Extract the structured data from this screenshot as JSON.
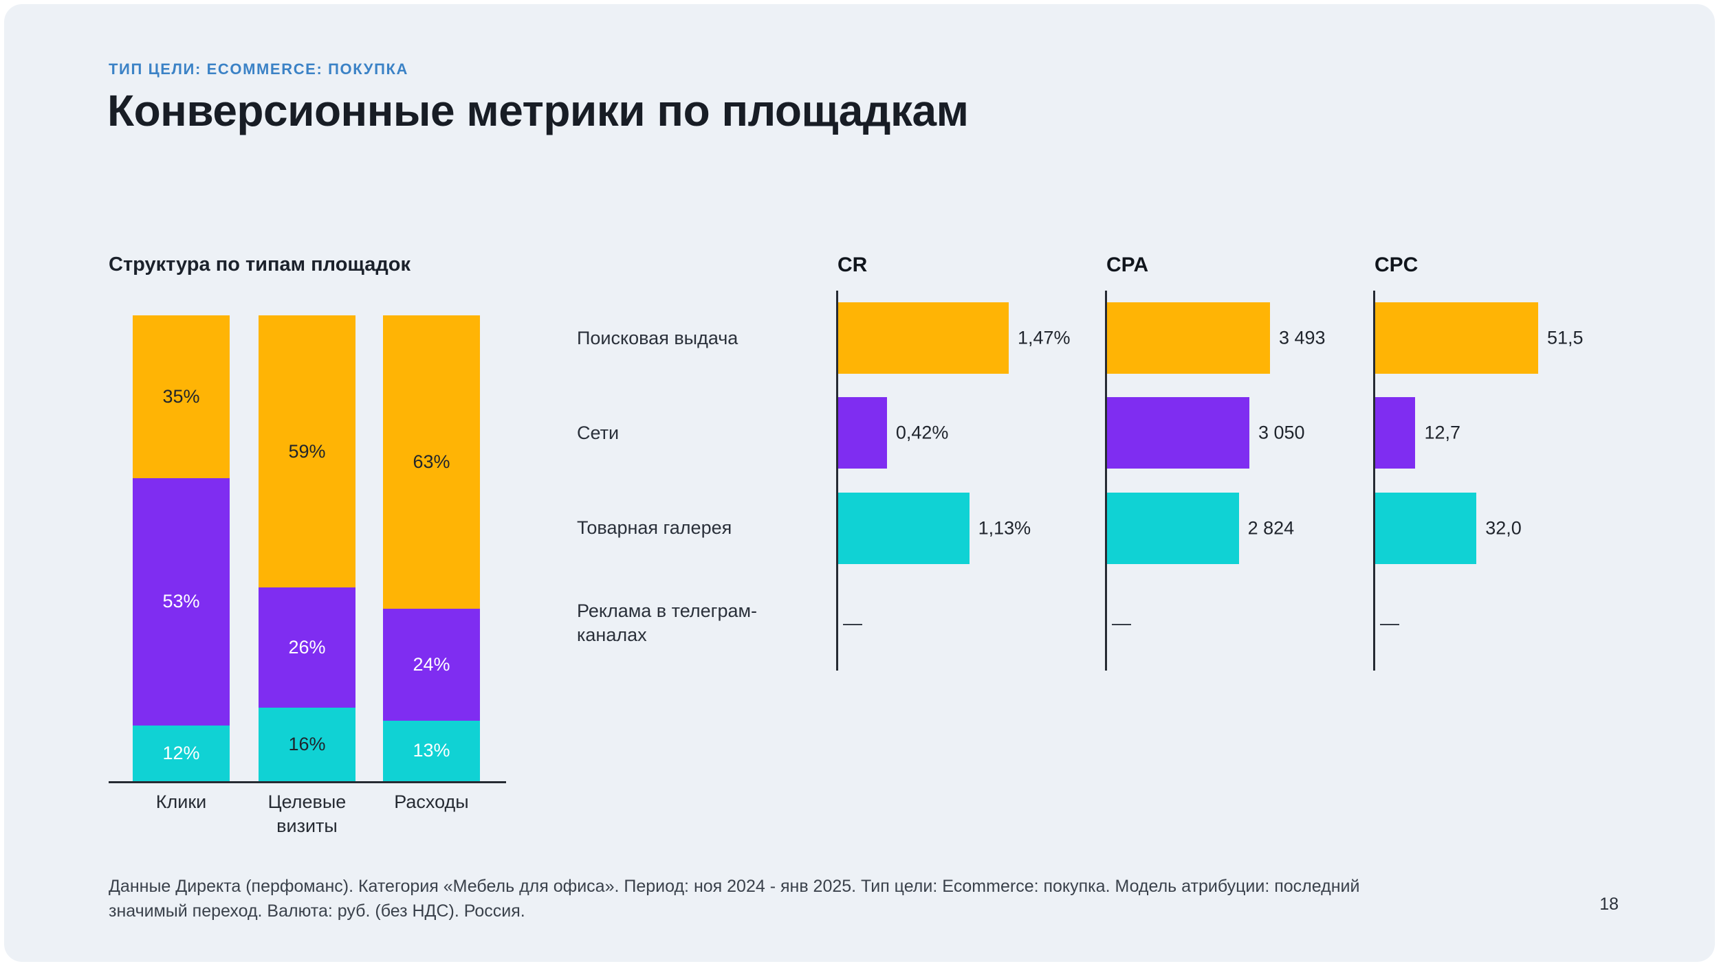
{
  "page": {
    "eyebrow": "ТИП ЦЕЛИ: ECOMMERCE: ПОКУПКА",
    "title": "Конверсионные метрики по площадкам",
    "footnote": "Данные Директа (перфоманс). Категория «Мебель для офиса». Период: ноя 2024 - янв 2025. Тип цели: Ecommerce: покупка. Модель атрибуции: последний значимый переход. Валюта: руб. (без НДС). Россия.",
    "page_number": "18"
  },
  "colors": {
    "background": "#EDF1F6",
    "accent_blue": "#3B82C6",
    "text_dark": "#1B212B",
    "axis": "#262B33",
    "orange": "#FFB405",
    "purple": "#7F2DF1",
    "cyan": "#10D2D4"
  },
  "chart_data": [
    {
      "type": "bar",
      "variant": "stacked-column-percent",
      "title": "Структура по типам площадок",
      "categories": [
        "Клики",
        "Целевые визиты",
        "Расходы"
      ],
      "series": [
        {
          "name": "Товарная галерея",
          "color_key": "cyan",
          "values": [
            12,
            16,
            13
          ],
          "labels": [
            "12%",
            "16%",
            "13%"
          ],
          "label_colors": [
            "#FFFFFF",
            "#1F242C",
            "#FFFFFF"
          ]
        },
        {
          "name": "Сети",
          "color_key": "purple",
          "values": [
            53,
            26,
            24
          ],
          "labels": [
            "53%",
            "26%",
            "24%"
          ],
          "label_colors": [
            "#FFFFFF",
            "#FFFFFF",
            "#FFFFFF"
          ]
        },
        {
          "name": "Поисковая выдача",
          "color_key": "orange",
          "values": [
            35,
            59,
            63
          ],
          "labels": [
            "35%",
            "59%",
            "63%"
          ],
          "label_colors": [
            "#1F242C",
            "#1F242C",
            "#1F242C"
          ]
        }
      ],
      "ylim": [
        0,
        100
      ],
      "grid": false,
      "legend": "none"
    },
    {
      "type": "bar",
      "variant": "horizontal",
      "title": "CR",
      "categories": [
        "Поисковая выдача",
        "Сети",
        "Товарная галерея",
        "Реклама в телеграм-каналах"
      ],
      "values": [
        1.47,
        0.42,
        1.13,
        null
      ],
      "labels": [
        "1,47%",
        "0,42%",
        "1,13%",
        "—"
      ],
      "color_keys": [
        "orange",
        "purple",
        "cyan",
        null
      ],
      "xlim": [
        0,
        1.47
      ],
      "grid": false,
      "legend": "none"
    },
    {
      "type": "bar",
      "variant": "horizontal",
      "title": "CPA",
      "categories": [
        "Поисковая выдача",
        "Сети",
        "Товарная галерея",
        "Реклама в телеграм-каналах"
      ],
      "values": [
        3493,
        3050,
        2824,
        null
      ],
      "labels": [
        "3 493",
        "3 050",
        "2 824",
        "—"
      ],
      "color_keys": [
        "orange",
        "purple",
        "cyan",
        null
      ],
      "xlim": [
        0,
        3493
      ],
      "grid": false,
      "legend": "none"
    },
    {
      "type": "bar",
      "variant": "horizontal",
      "title": "CPC",
      "categories": [
        "Поисковая выдача",
        "Сети",
        "Товарная галерея",
        "Реклама в телеграм-каналах"
      ],
      "values": [
        51.5,
        12.7,
        32.0,
        null
      ],
      "labels": [
        "51,5",
        "12,7",
        "32,0",
        "—"
      ],
      "color_keys": [
        "orange",
        "purple",
        "cyan",
        null
      ],
      "xlim": [
        0,
        51.5
      ],
      "grid": false,
      "legend": "none"
    }
  ]
}
